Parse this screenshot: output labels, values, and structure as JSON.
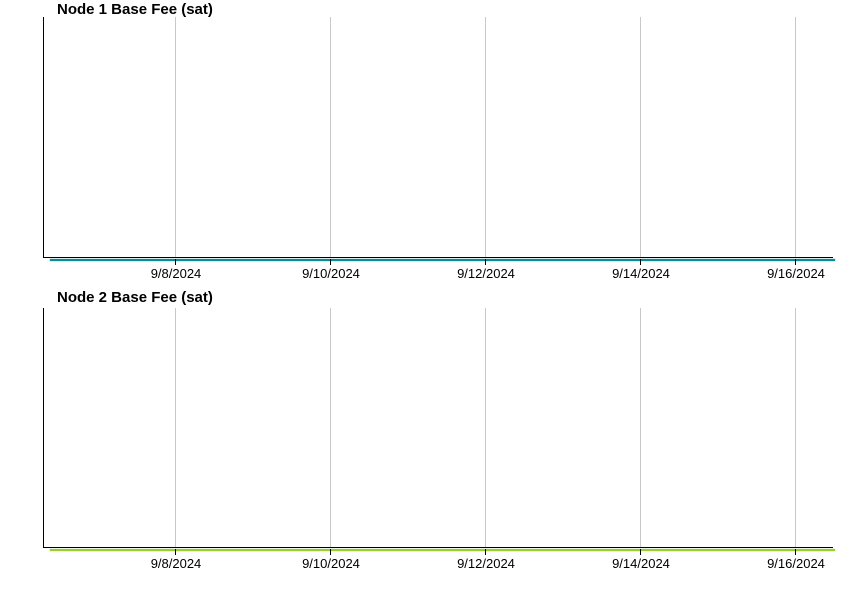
{
  "chart_data": [
    {
      "type": "line",
      "title": "Node 1 Base Fee (sat)",
      "xlabel": "",
      "ylabel": "",
      "x": [
        "9/8/2024",
        "9/10/2024",
        "9/12/2024",
        "9/14/2024",
        "9/16/2024"
      ],
      "xlim_estimate": [
        "9/6/2024",
        "9/17/2024"
      ],
      "series": [
        {
          "name": "Node 1 Base Fee (sat)",
          "values": [
            0,
            0,
            0,
            0,
            0
          ]
        }
      ],
      "value_note": "flat line rendered at the baseline (constant value ~0)",
      "line_color": "#0e8a92",
      "grid": "vertical-gridlines-only",
      "gridline_color": "#c9c9c9",
      "axis_color": "#000000",
      "legend": "none"
    },
    {
      "type": "line",
      "title": "Node 2 Base Fee (sat)",
      "xlabel": "",
      "ylabel": "",
      "x": [
        "9/8/2024",
        "9/10/2024",
        "9/12/2024",
        "9/14/2024",
        "9/16/2024"
      ],
      "xlim_estimate": [
        "9/6/2024",
        "9/17/2024"
      ],
      "series": [
        {
          "name": "Node 2 Base Fee (sat)",
          "values": [
            0,
            0,
            0,
            0,
            0
          ]
        }
      ],
      "value_note": "flat line rendered at the baseline (constant value ~0)",
      "line_color": "#9acd32",
      "grid": "vertical-gridlines-only",
      "gridline_color": "#c9c9c9",
      "axis_color": "#000000",
      "legend": "none"
    }
  ]
}
